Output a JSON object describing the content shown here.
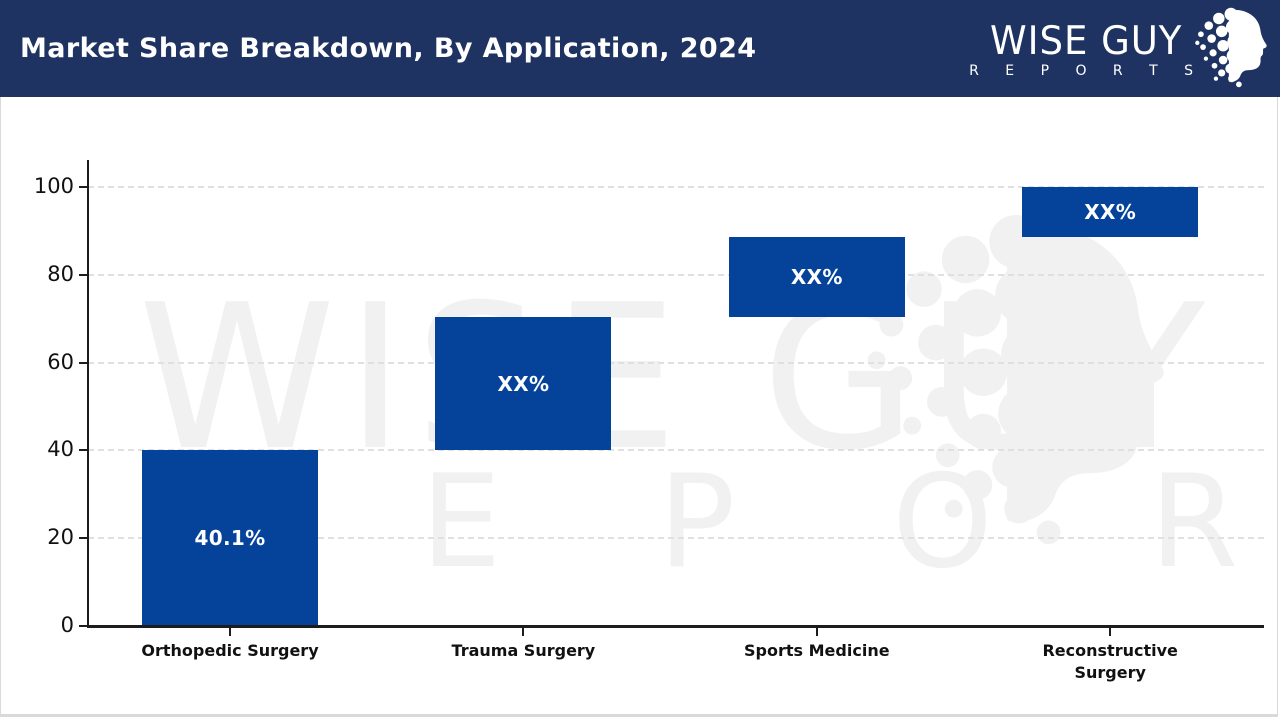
{
  "header": {
    "title": "Market Share Breakdown, By Application, 2024",
    "bg_color": "#1e3361",
    "logo": {
      "line1": "WISE GUY",
      "line2": "R E P O R T S"
    }
  },
  "watermark": {
    "line1": "WISE GUY",
    "line2": "R E P O R T S",
    "color": "#f1f1f2"
  },
  "chart_data": {
    "type": "bar",
    "subtype": "waterfall-stacked-percentage",
    "title": "Market Share Breakdown, By Application, 2024",
    "categories": [
      "Orthopedic Surgery",
      "Trauma Surgery",
      "Sports Medicine",
      "Reconstructive Surgery"
    ],
    "segments": [
      {
        "category": "Orthopedic Surgery",
        "start": 0,
        "end": 40.1,
        "value": 40.1,
        "label": "40.1%"
      },
      {
        "category": "Trauma Surgery",
        "start": 40.1,
        "end": 70.3,
        "value": 30.2,
        "label": "XX%"
      },
      {
        "category": "Sports Medicine",
        "start": 70.3,
        "end": 88.6,
        "value": 18.3,
        "label": "XX%"
      },
      {
        "category": "Reconstructive Surgery",
        "start": 88.6,
        "end": 100,
        "value": 11.4,
        "label": "XX%"
      }
    ],
    "yticks": [
      0,
      20,
      40,
      60,
      80,
      100
    ],
    "ylim": [
      0,
      106
    ],
    "xlabel": "",
    "ylabel": "",
    "grid": "horizontal-dashed",
    "legend": "none",
    "bar_color": "#05439b",
    "bar_label_color": "#ffffff",
    "gridline_color": "#e0e0e0"
  }
}
